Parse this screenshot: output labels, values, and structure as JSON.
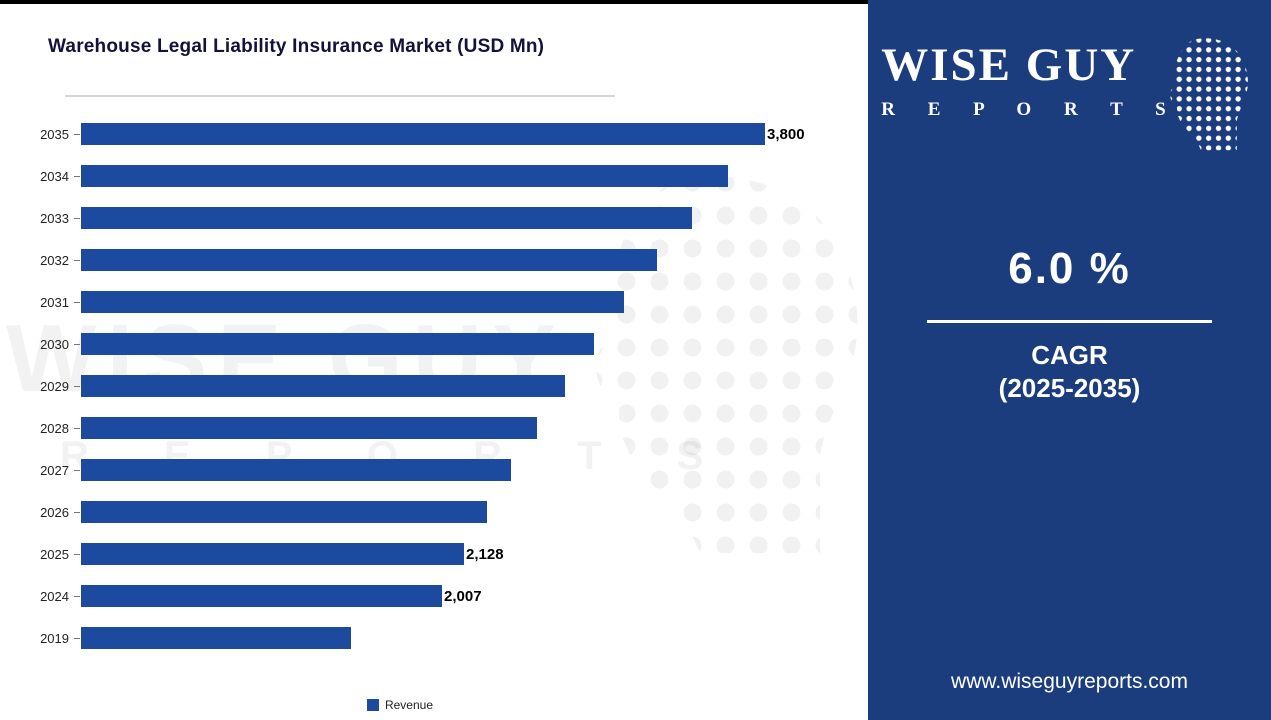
{
  "title": "Warehouse Legal Liability Insurance Market (USD Mn)",
  "colors": {
    "bar": "#1b4a9e",
    "panel": "#1c3d7d"
  },
  "legend": {
    "label": "Revenue"
  },
  "chart_data": {
    "type": "bar",
    "orientation": "horizontal",
    "title": "Warehouse Legal Liability Insurance Market (USD Mn)",
    "xlabel": "",
    "ylabel": "",
    "xlim": [
      0,
      4000
    ],
    "grid": false,
    "legend_position": "bottom",
    "categories": [
      "2035",
      "2034",
      "2033",
      "2032",
      "2031",
      "2030",
      "2029",
      "2028",
      "2027",
      "2026",
      "2025",
      "2024",
      "2019"
    ],
    "values": [
      3800,
      3596,
      3392,
      3200,
      3019,
      2848,
      2687,
      2535,
      2391,
      2256,
      2128,
      2007,
      1500
    ],
    "data_labels": [
      "3,800",
      null,
      null,
      null,
      null,
      null,
      null,
      null,
      null,
      null,
      "2,128",
      "2,007",
      null
    ],
    "series_name": "Revenue"
  },
  "panel": {
    "logo_line1": "WISE GUY",
    "logo_line2": "R E P O R T S",
    "cagr_value": "6.0 %",
    "cagr_label_line1": "CAGR",
    "cagr_label_line2": "(2025-2035)",
    "website": "www.wiseguyreports.com"
  },
  "watermark": {
    "line1": "WISE GUY",
    "line2": "R E P O R T S"
  }
}
